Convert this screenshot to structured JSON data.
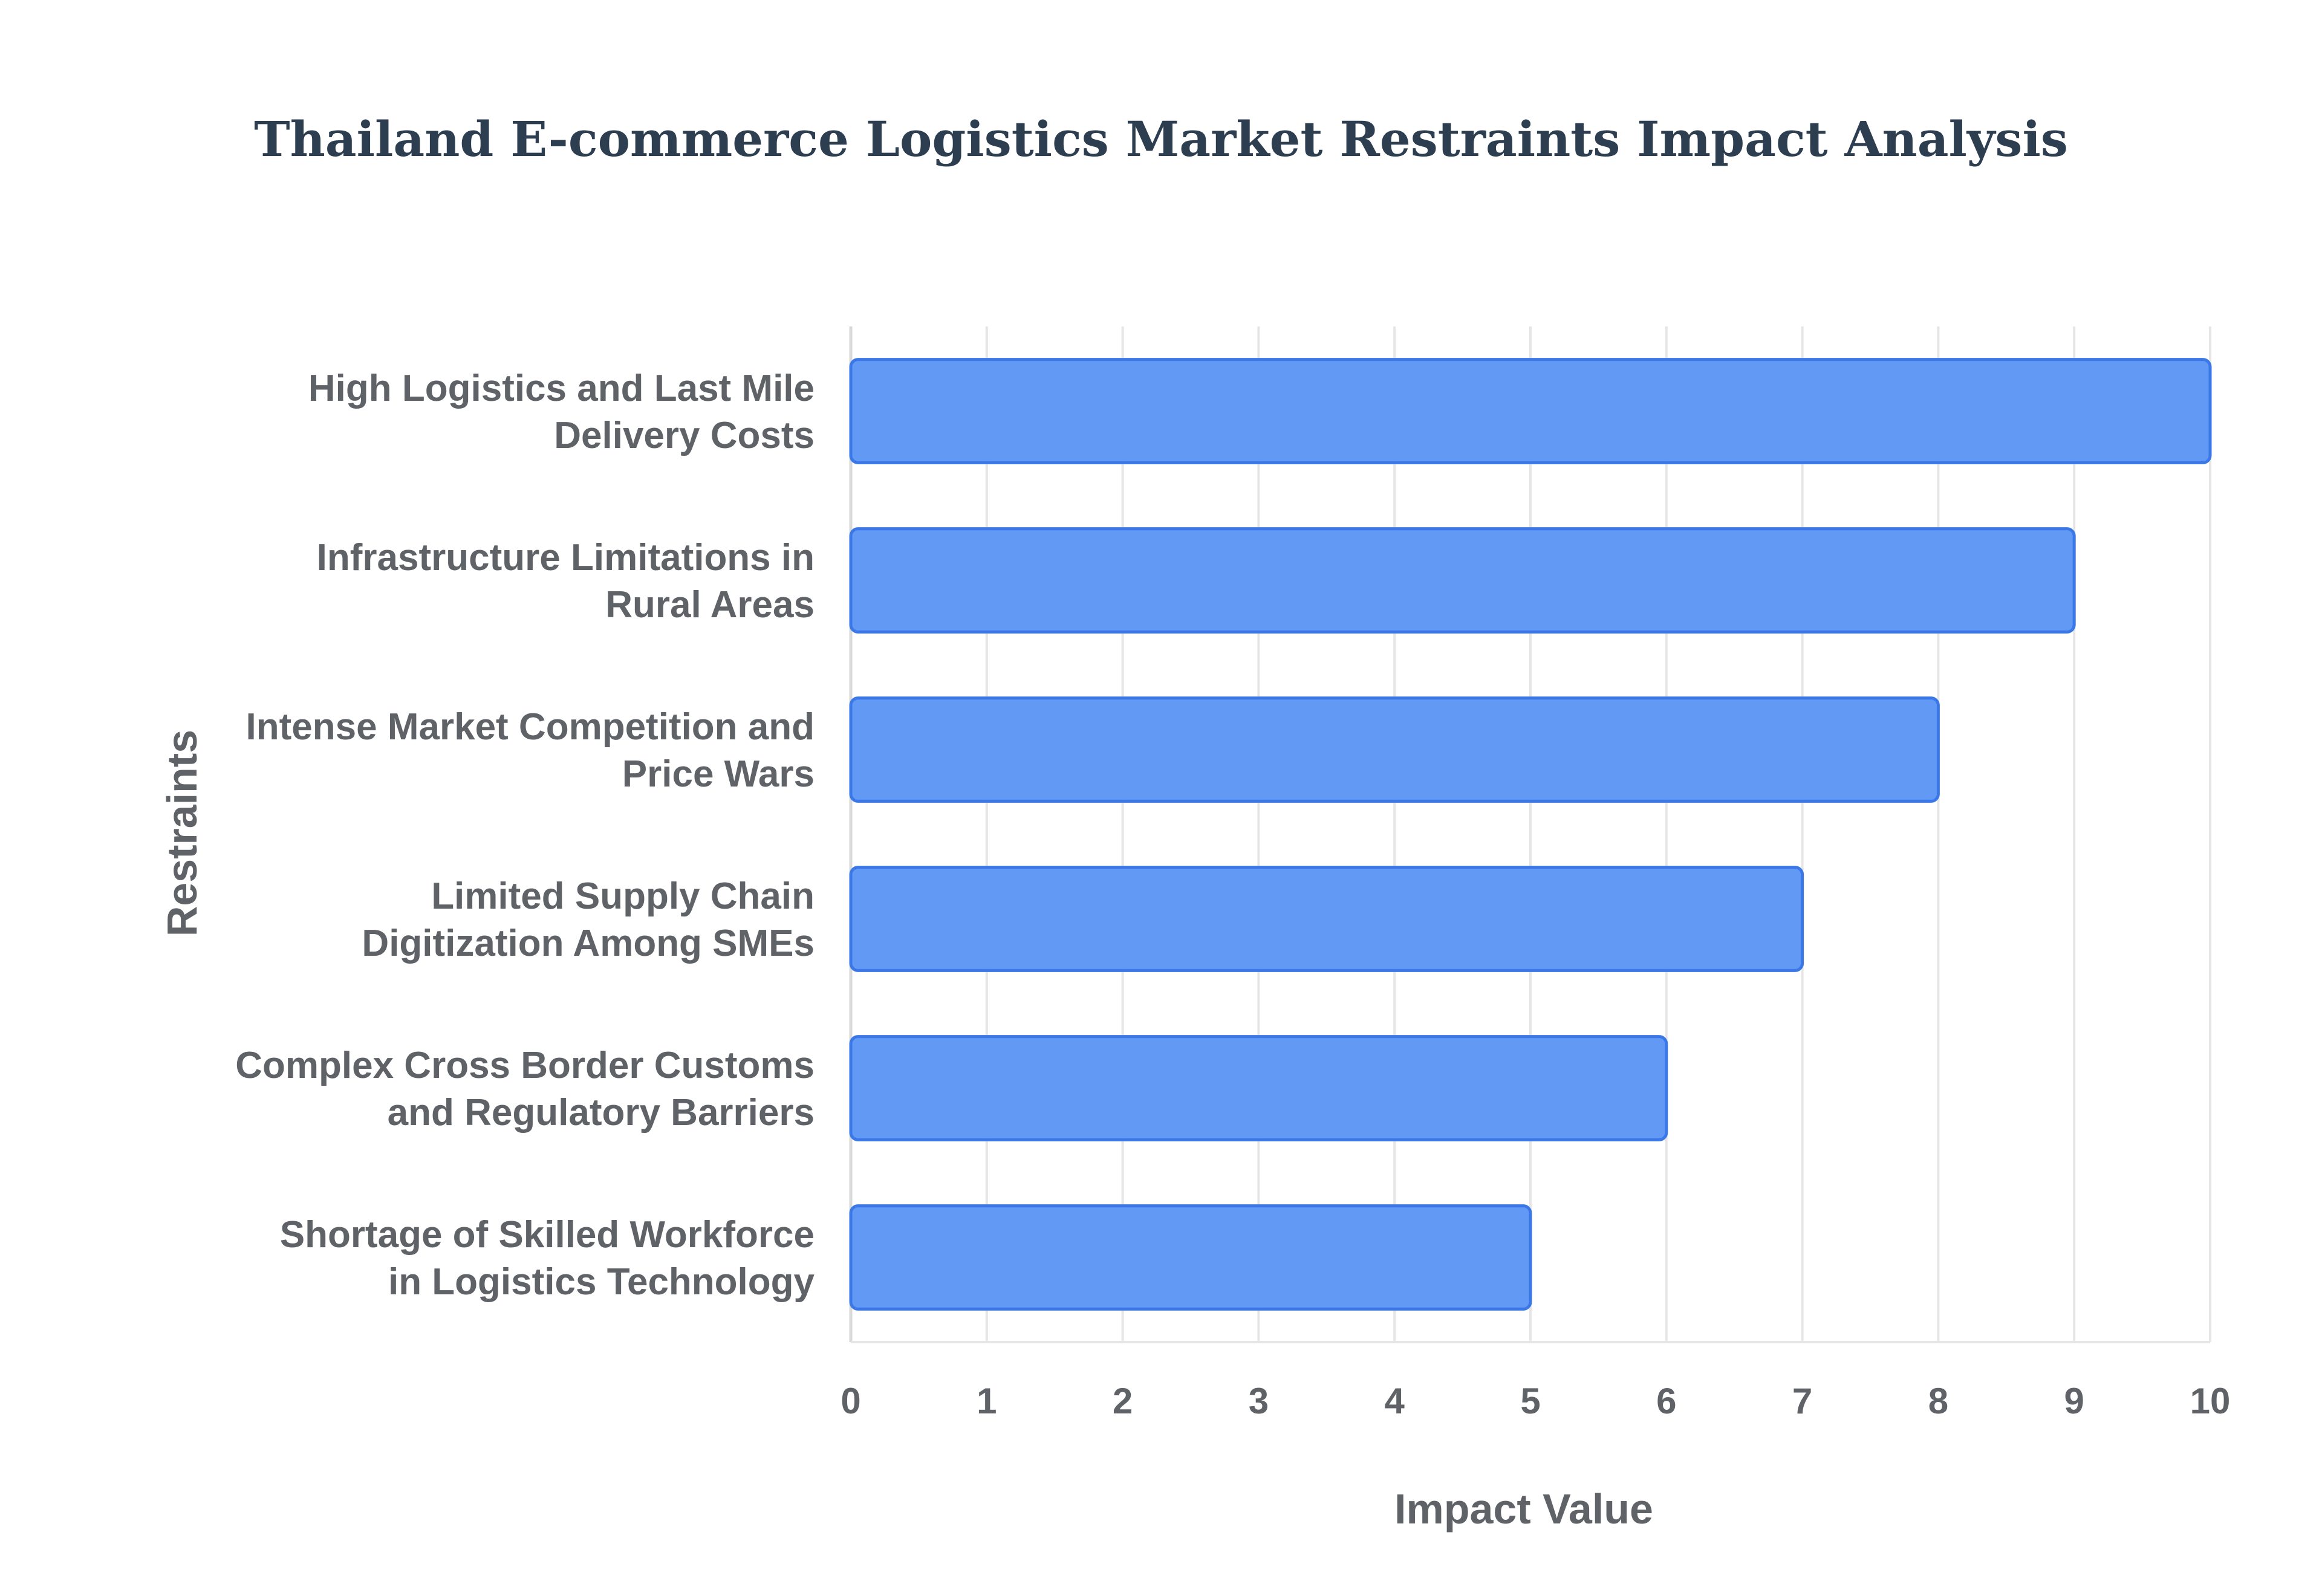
{
  "chart_data": {
    "type": "bar",
    "orientation": "horizontal",
    "title": "Thailand E-commerce Logistics Market Restraints Impact Analysis",
    "xlabel": "Impact Value",
    "ylabel": "Restraints",
    "xlim": [
      0,
      10
    ],
    "xticks": [
      0,
      1,
      2,
      3,
      4,
      5,
      6,
      7,
      8,
      9,
      10
    ],
    "grid": true,
    "categories": [
      [
        "High Logistics and Last Mile",
        "Delivery Costs"
      ],
      [
        "Infrastructure Limitations in",
        "Rural Areas"
      ],
      [
        "Intense Market Competition and",
        "Price Wars"
      ],
      [
        "Limited Supply Chain",
        "Digitization Among SMEs"
      ],
      [
        "Complex Cross Border Customs",
        "and Regulatory Barriers"
      ],
      [
        "Shortage of Skilled Workforce",
        "in Logistics Technology"
      ]
    ],
    "values": [
      10,
      9,
      8,
      7,
      6,
      5
    ],
    "colors": {
      "bar_fill": "#6199f5",
      "bar_stroke": "#3b78e7",
      "title": "#2c3e50",
      "text": "#5f6368",
      "grid": "#e6e6e6"
    }
  }
}
